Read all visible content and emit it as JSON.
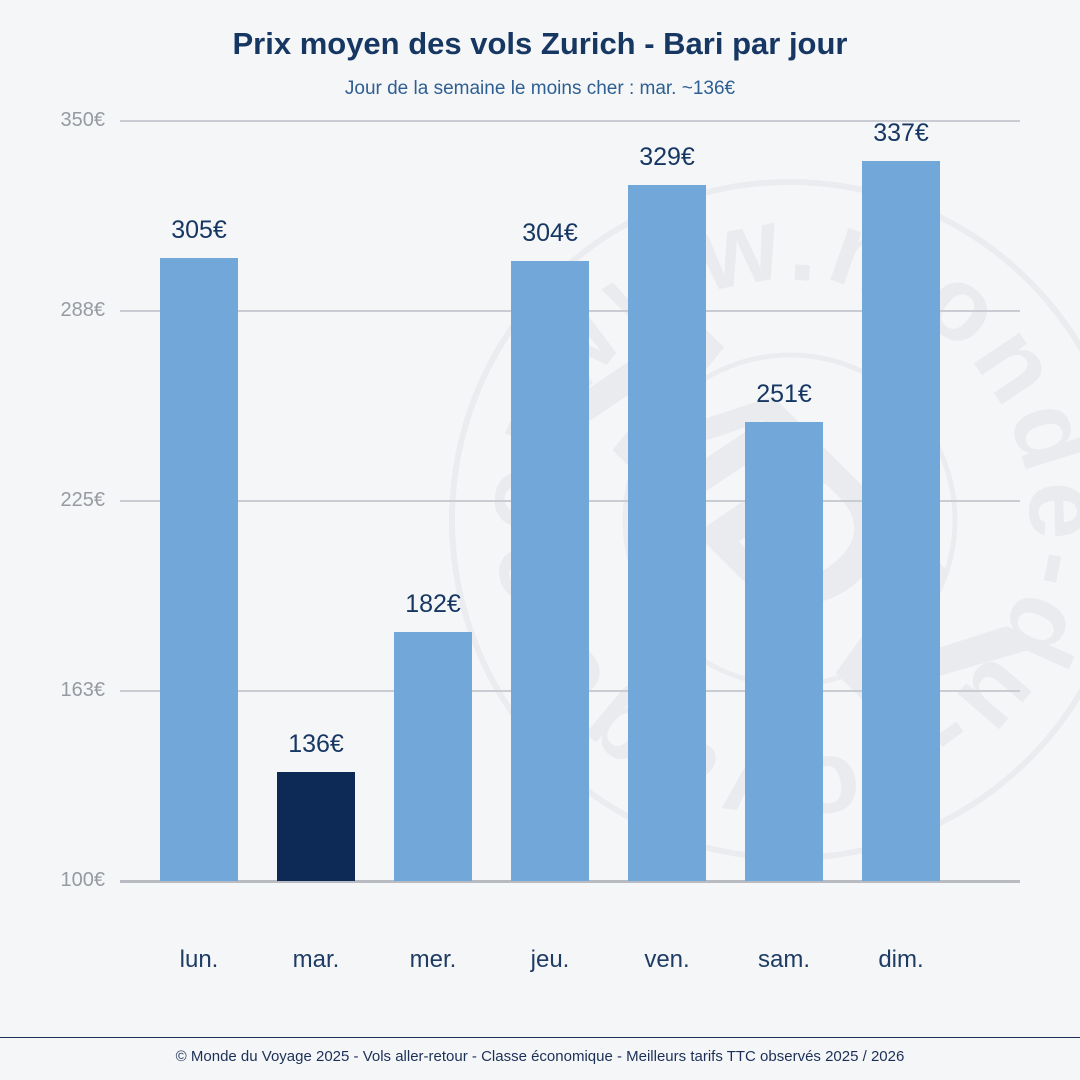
{
  "title": "Prix moyen des vols Zurich - Bari par jour",
  "subtitle": "Jour de la semaine le moins cher : mar. ~136€",
  "watermark": {
    "ring_text": "www.monde-du-voyage.com",
    "monogram": "MDV"
  },
  "footer": {
    "text": "© Monde du Voyage 2025 - Vols aller-retour - Classe économique - Meilleurs tarifs TTC observés 2025 / 2026"
  },
  "chart_data": {
    "type": "bar",
    "title": "Prix moyen des vols Zurich - Bari par jour",
    "subtitle": "Jour de la semaine le moins cher : mar. ~136€",
    "categories": [
      "lun.",
      "mar.",
      "mer.",
      "jeu.",
      "ven.",
      "sam.",
      "dim."
    ],
    "values": [
      305,
      136,
      182,
      304,
      329,
      251,
      337
    ],
    "value_labels": [
      "305€",
      "136€",
      "182€",
      "304€",
      "329€",
      "251€",
      "337€"
    ],
    "cheapest_day": "mar.",
    "cheapest_value": 136,
    "currency": "€",
    "ylim": [
      100,
      350
    ],
    "yticks": [
      {
        "label": "350€",
        "value": 350
      },
      {
        "label": "288€",
        "value": 287.5
      },
      {
        "label": "225€",
        "value": 225
      },
      {
        "label": "163€",
        "value": 162.5
      },
      {
        "label": "100€",
        "value": 100
      }
    ],
    "grid": true,
    "legend": false,
    "bar_color": "#72a7da",
    "highlight_color": "#0d2956",
    "highlight_index": 1,
    "label_color": "#173763",
    "axis_label_color": "#969aa2"
  }
}
